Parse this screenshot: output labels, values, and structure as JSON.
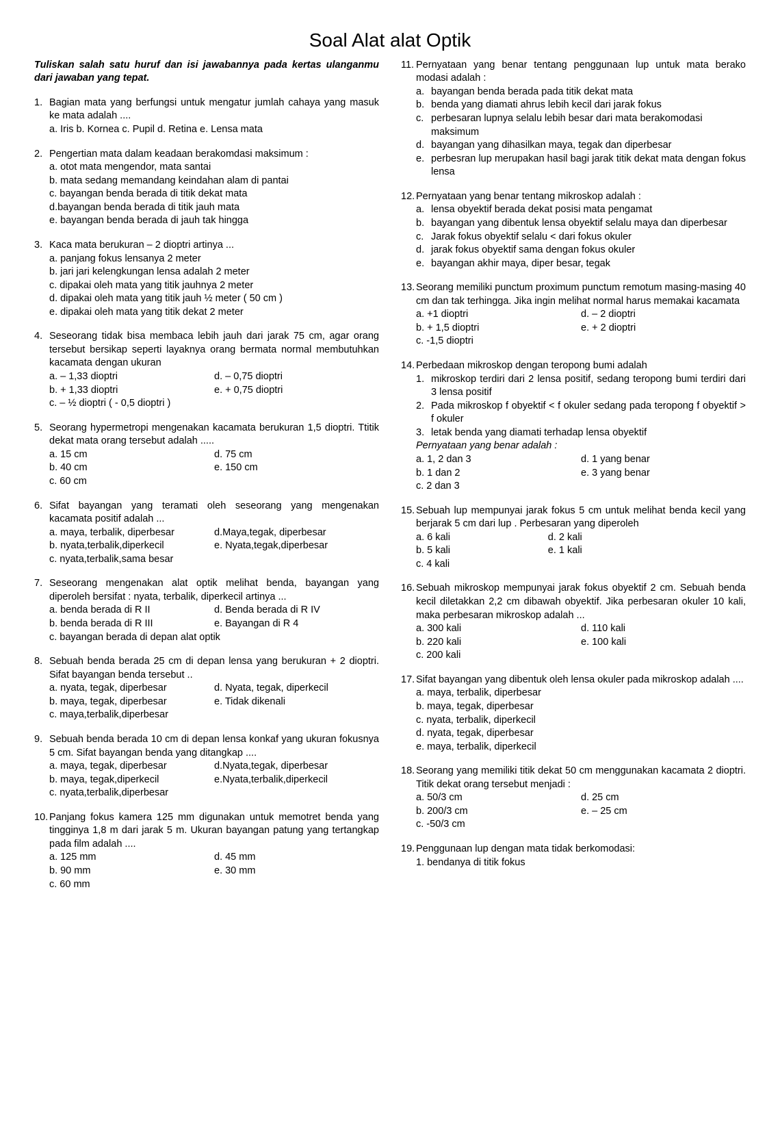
{
  "title": "Soal Alat alat Optik",
  "instruction": "Tuliskan salah satu huruf dan isi jawabannya pada kertas ulanganmu dari jawaban yang tepat.",
  "left": {
    "q1": {
      "num": "1.",
      "text": "Bagian mata yang berfungsi untuk mengatur jumlah cahaya yang masuk ke mata adalah ....",
      "opts": "a. Iris    b. Kornea  c. Pupil    d. Retina  e. Lensa mata"
    },
    "q2": {
      "num": "2.",
      "text": "Pengertian mata dalam keadaan berakomdasi maksimum :",
      "a": "a. otot mata mengendor, mata santai",
      "b": "b. mata sedang memandang keindahan alam di pantai",
      "c": "c. bayangan benda  berada di titik dekat mata",
      "d": "d.bayangan benda  berada di titik jauh mata",
      "e": "e. bayangan benda  berada di jauh tak hingga"
    },
    "q3": {
      "num": "3.",
      "text": "Kaca mata berukuran – 2 dioptri artinya ...",
      "a": "a. panjang fokus lensanya 2 meter",
      "b": "b. jari jari kelengkungan lensa adalah 2 meter",
      "c": "c. dipakai oleh mata yang  titik jauhnya  2 meter",
      "d": "d. dipakai oleh mata yang titik jauh  ½ meter ( 50 cm )",
      "e": "e. dipakai oleh mata yang titik dekat  2 meter"
    },
    "q4": {
      "num": "4.",
      "text": "Seseorang tidak bisa membaca lebih jauh   dari jarak 75 cm, agar orang tersebut bersikap seperti layaknya orang bermata normal membutuhkan kacamata dengan ukuran",
      "a1": "a. – 1,33 dioptri",
      "d1": "d. – 0,75  dioptri",
      "b1": "b. + 1,33 dioptri",
      "e1": "e. + 0,75 dioptri",
      "c1": "c. – ½ dioptri  ( - 0,5 dioptri )"
    },
    "q5": {
      "num": "5.",
      "text": "Seorang hypermetropi mengenakan kacamata berukuran 1,5 dioptri. Ttitik dekat mata orang tersebut adalah .....",
      "a1": "a.  15 cm",
      "d1": "d. 75 cm",
      "b1": "b.  40 cm",
      "e1": "e. 150 cm",
      "c1": "c.  60 cm"
    },
    "q6": {
      "num": "6.",
      "text": "Sifat bayangan yang teramati oleh seseorang yang mengenakan kacamata positif adalah ...",
      "a1": "a. maya, terbalik, diperbesar",
      "d1": "d.Maya,tegak, diperbesar",
      "b1": "b. nyata,terbalik,diperkecil",
      "e1": "e. Nyata,tegak,diperbesar",
      "c1": "c. nyata,terbalik,sama besar"
    },
    "q7": {
      "num": "7.",
      "text": "Seseorang mengenakan alat optik melihat benda, bayangan yang diperoleh bersifat : nyata, terbalik, diperkecil artinya ...",
      "a1": "a. benda berada di R II",
      "d1": "d. Benda berada di R IV",
      "b1": "b. benda berada di R III",
      "e1": "e. Bayangan di R 4",
      "c1": "c. bayangan berada di  depan alat optik"
    },
    "q8": {
      "num": "8.",
      "text": "Sebuah benda berada 25 cm di depan lensa yang berukuran + 2  dioptri. Sifat bayangan benda tersebut ..",
      "a1": "a.  nyata, tegak, diperbesar",
      "d1": "d. Nyata, tegak, diperkecil",
      "b1": "b. maya, tegak, diperbesar",
      "e1": "e. Tidak dikenali",
      "c1": "c. maya,terbalik,diperbesar"
    },
    "q9": {
      "num": "9.",
      "text": "Sebuah benda berada 10 cm di depan lensa konkaf yang ukuran fokusnya 5 cm. Sifat bayangan benda yang ditangkap ....",
      "a1": "a. maya, tegak, diperbesar",
      "d1": "d.Nyata,tegak, diperbesar",
      "b1": "b. maya, tegak,diperkecil",
      "e1": "e.Nyata,terbalik,diperkecil",
      "c1": "c. nyata,terbalik,diperbesar"
    },
    "q10": {
      "num": "10.",
      "text": "Panjang fokus kamera 125 mm digunakan untuk memotret benda yang tingginya 1,8 m dari jarak 5 m. Ukuran bayangan patung yang tertangkap pada film adalah ....",
      "a1": "a. 125  mm",
      "d1": "d. 45 mm",
      "b1": "b.  90   mm",
      "e1": "e. 30 mm",
      "c1": "c.  60   mm"
    }
  },
  "right": {
    "q11": {
      "num": "11.",
      "text": "Pernyataan yang benar tentang penggunaan lup untuk mata berako modasi adalah :",
      "a": "bayangan benda berada pada titik dekat mata",
      "b": "benda yang diamati ahrus lebih kecil dari jarak fokus",
      "c": "perbesaran lupnya selalu lebih besar dari mata berakomodasi maksimum",
      "d": "bayangan yang dihasilkan maya, tegak dan diperbesar",
      "e": "perbesran lup merupakan hasil bagi jarak titik dekat mata dengan fokus lensa"
    },
    "q12": {
      "num": "12.",
      "text": "Pernyataan yang benar tentang mikroskop adalah :",
      "a": "lensa obyektif berada dekat posisi mata pengamat",
      "b": "bayangan yang dibentuk lensa obyektif selalu maya dan diperbesar",
      "c": "Jarak fokus obyektif selalu < dari fokus okuler",
      "d": "jarak fokus obyektif sama dengan fokus okuler",
      "e": "bayangan akhir maya, diper besar, tegak"
    },
    "q13": {
      "num": "13.",
      "text": "Seorang memiliki punctum proximum punctum remotum masing-masing 40 cm dan tak terhingga. Jika ingin melihat  normal harus memakai kacamata",
      "a1": "a.  +1 dioptri",
      "d1": "d. – 2  dioptri",
      "b1": "b.  + 1,5 dioptri",
      "e1": "e.  + 2 dioptri",
      "c1": "c.  -1,5 dioptri"
    },
    "q14": {
      "num": "14.",
      "text": "Perbedaan mikroskop dengan teropong bumi adalah",
      "s1": "mikroskop terdiri dari 2 lensa positif, sedang teropong bumi terdiri dari 3 lensa positif",
      "s2": "Pada mikroskop f obyektif < f okuler sedang pada teropong f obyektif > f okuler",
      "s3": "letak benda yang diamati terhadap lensa obyektif",
      "pb": "Pernyataan yang benar adalah :",
      "a1": "a.  1, 2 dan 3",
      "d1": "d. 1 yang benar",
      "b1": "b.  1 dan 2",
      "e1": "e. 3 yang benar",
      "c1": "c.  2 dan 3"
    },
    "q15": {
      "num": "15.",
      "text": "Sebuah lup mempunyai jarak fokus 5 cm untuk melihat benda kecil yang berjarak 5 cm dari lup . Perbesaran yang diperoleh",
      "a1": "a.  6 kali",
      "d1": "d. 2 kali",
      "b1": "b.  5 kali",
      "e1": "e. 1 kali",
      "c1": "c.  4 kali"
    },
    "q16": {
      "num": "16.",
      "text": "Sebuah mikroskop mempunyai jarak fokus obyektif 2 cm. Sebuah benda kecil diletakkan 2,2 cm  dibawah obyektif. Jika perbesaran okuler 10 kali, maka perbesaran mikroskop adalah ...",
      "a1": "a.  300 kali",
      "d1": "d. 110 kali",
      "b1": "b.  220 kali",
      "e1": "e. 100 kali",
      "c1": "c.  200 kali"
    },
    "q17": {
      "num": "17.",
      "text": "Sifat bayangan yang dibentuk oleh lensa okuler pada mikroskop adalah ....",
      "a": "a.  maya, terbalik, diperbesar",
      "b": "b.  maya, tegak, diperbesar",
      "c": "c.  nyata, terbalik, diperkecil",
      "d": "d.  nyata, tegak, diperbesar",
      "e": "e.  maya, terbalik, diperkecil"
    },
    "q18": {
      "num": "18.",
      "text": "Seorang yang memiliki titik dekat 50 cm menggunakan kacamata 2 dioptri. Titik dekat orang tersebut menjadi :",
      "a1": "a.  50/3 cm",
      "d1": "d. 25 cm",
      "b1": "b.  200/3 cm",
      "e1": "e. – 25 cm",
      "c1": "c.  -50/3 cm"
    },
    "q19": {
      "num": "19.",
      "text": "Penggunaan lup dengan mata tidak berkomodasi:",
      "s1": "1.  bendanya di titik fokus"
    }
  }
}
